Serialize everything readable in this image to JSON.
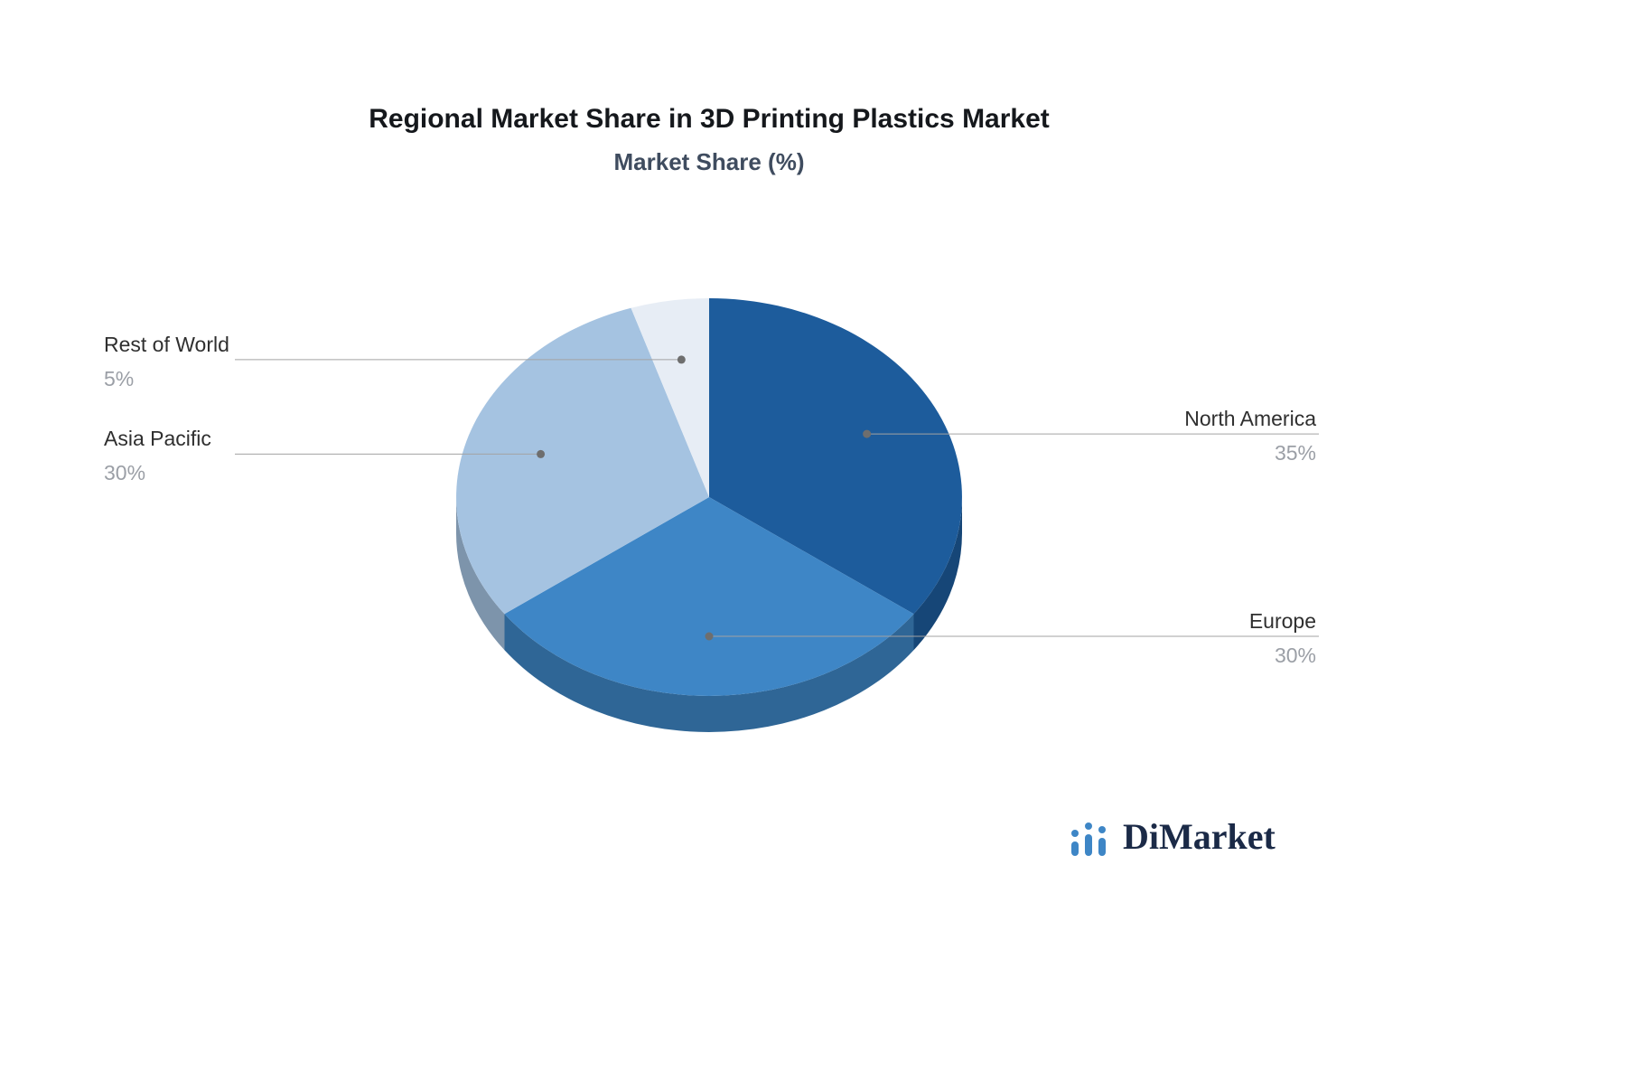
{
  "header": {
    "title": "Regional Market Share in 3D Printing Plastics Market",
    "subtitle": "Market Share (%)"
  },
  "chart_data": {
    "type": "pie",
    "title": "Regional Market Share in 3D Printing Plastics Market",
    "subtitle": "Market Share (%)",
    "unit": "%",
    "labels": [
      "North America",
      "Europe",
      "Asia Pacific",
      "Rest of World"
    ],
    "values": [
      35,
      30,
      30,
      5
    ],
    "colors": [
      "#1d5c9c",
      "#3e86c6",
      "#a5c3e1",
      "#e7edf5"
    ],
    "start_angle_deg": 0,
    "direction": "clockwise",
    "effect": "3d",
    "legend": "none",
    "label_sides": [
      "right",
      "right",
      "left",
      "left"
    ]
  },
  "slice_labels": [
    {
      "name": "North America",
      "value": "35%"
    },
    {
      "name": "Europe",
      "value": "30%"
    },
    {
      "name": "Asia Pacific",
      "value": "30%"
    },
    {
      "name": "Rest of World",
      "value": "5%"
    }
  ],
  "brand": {
    "name": "DiMarket",
    "icon_color": "#3e86c6",
    "text_color": "#1b2a47"
  },
  "style": {
    "leader_line_color": "#a3a3a3",
    "leader_dot_color": "#6e6e6e",
    "label_name_color": "#2f2f2f",
    "label_value_color": "#9b9fa6"
  }
}
